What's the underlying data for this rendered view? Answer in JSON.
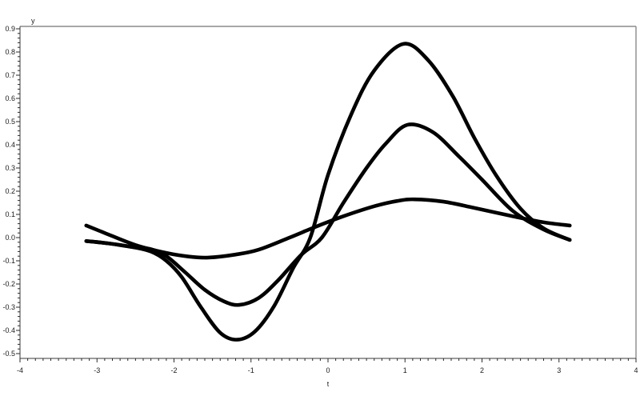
{
  "page": {
    "background_color": "#ffffff"
  },
  "chart_data": {
    "type": "line",
    "title": "",
    "xlabel": "t",
    "ylabel": "y",
    "xlim": [
      -4,
      4
    ],
    "ylim": [
      -0.5,
      0.9
    ],
    "grid": false,
    "legend": "none",
    "frame": "full-box",
    "colors": {
      "curve": "#000000",
      "frame_top_right": "#8a8a8a",
      "frame_left_bottom": "#3a3a3a",
      "tick": "#2a2a2a",
      "label": "#1a1a1a"
    },
    "curve_width": 4.6,
    "x_axis": {
      "label": "t",
      "major_tick_values": [
        -4,
        -3,
        -2,
        -1,
        0,
        1,
        2,
        3,
        4
      ],
      "major_tick_labels": [
        "-4",
        "-3",
        "-2",
        "-1",
        "0",
        "1",
        "2",
        "3",
        "4"
      ],
      "minor_tick_step": 0.1
    },
    "y_axis": {
      "label": "y",
      "major_tick_values": [
        0.9,
        0.8,
        0.7,
        0.6,
        0.5,
        0.4,
        0.3,
        0.2,
        0.1,
        0.0,
        -0.1,
        -0.2,
        -0.3,
        -0.4,
        -0.5
      ],
      "major_tick_labels": [
        "0.9",
        "0.8",
        "0.7",
        "0.6",
        "0.5",
        "0.4",
        "0.3",
        "0.2",
        "0.1",
        "0.0",
        "-0.1",
        "-0.2",
        "-0.3",
        "-0.4",
        "-0.5"
      ],
      "minor_tick_step": 0.02
    },
    "series": [
      {
        "name": "series-1-large-amplitude",
        "points": [
          [
            -3.14,
            -0.015
          ],
          [
            -2.85,
            -0.025
          ],
          [
            -2.55,
            -0.04
          ],
          [
            -2.3,
            -0.06
          ],
          [
            -2.1,
            -0.1
          ],
          [
            -1.9,
            -0.17
          ],
          [
            -1.65,
            -0.3
          ],
          [
            -1.4,
            -0.41
          ],
          [
            -1.18,
            -0.44
          ],
          [
            -0.95,
            -0.405
          ],
          [
            -0.7,
            -0.295
          ],
          [
            -0.45,
            -0.13
          ],
          [
            -0.23,
            0.0
          ],
          [
            0.0,
            0.27
          ],
          [
            0.3,
            0.53
          ],
          [
            0.6,
            0.72
          ],
          [
            0.98,
            0.835
          ],
          [
            1.3,
            0.765
          ],
          [
            1.62,
            0.61
          ],
          [
            1.9,
            0.43
          ],
          [
            2.19,
            0.265
          ],
          [
            2.5,
            0.125
          ],
          [
            2.8,
            0.04
          ],
          [
            3.14,
            -0.01
          ]
        ]
      },
      {
        "name": "series-2-medium-amplitude",
        "points": [
          [
            -3.14,
            -0.015
          ],
          [
            -2.85,
            -0.025
          ],
          [
            -2.55,
            -0.04
          ],
          [
            -2.3,
            -0.05
          ],
          [
            -2.1,
            -0.08
          ],
          [
            -1.86,
            -0.148
          ],
          [
            -1.6,
            -0.225
          ],
          [
            -1.35,
            -0.275
          ],
          [
            -1.15,
            -0.29
          ],
          [
            -0.9,
            -0.26
          ],
          [
            -0.65,
            -0.185
          ],
          [
            -0.35,
            -0.075
          ],
          [
            -0.08,
            0.0
          ],
          [
            0.2,
            0.15
          ],
          [
            0.5,
            0.3
          ],
          [
            0.75,
            0.405
          ],
          [
            1.03,
            0.486
          ],
          [
            1.36,
            0.455
          ],
          [
            1.7,
            0.35
          ],
          [
            2.0,
            0.25
          ],
          [
            2.4,
            0.115
          ],
          [
            2.8,
            0.035
          ],
          [
            3.14,
            -0.01
          ]
        ]
      },
      {
        "name": "series-3-small-amplitude",
        "points": [
          [
            -3.14,
            0.052
          ],
          [
            -2.9,
            0.02
          ],
          [
            -2.5,
            -0.032
          ],
          [
            -2.1,
            -0.066
          ],
          [
            -1.8,
            -0.082
          ],
          [
            -1.55,
            -0.086
          ],
          [
            -1.2,
            -0.073
          ],
          [
            -0.9,
            -0.052
          ],
          [
            -0.5,
            0.0
          ],
          [
            -0.15,
            0.048
          ],
          [
            0.2,
            0.092
          ],
          [
            0.6,
            0.135
          ],
          [
            0.9,
            0.158
          ],
          [
            1.12,
            0.165
          ],
          [
            1.5,
            0.155
          ],
          [
            1.9,
            0.128
          ],
          [
            2.4,
            0.092
          ],
          [
            2.8,
            0.066
          ],
          [
            3.14,
            0.052
          ]
        ]
      }
    ]
  }
}
